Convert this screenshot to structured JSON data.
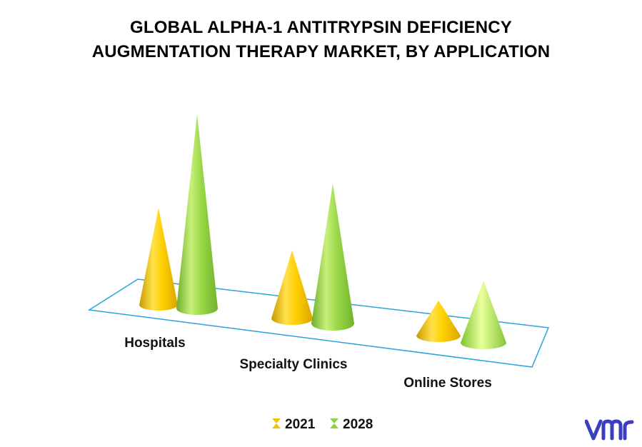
{
  "chart_data": {
    "type": "bar",
    "mark_shape": "3d-cone",
    "title_lines": [
      "GLOBAL ALPHA-1 ANTITRYPSIN DEFICIENCY",
      "AUGMENTATION THERAPY MARKET, BY APPLICATION"
    ],
    "categories": [
      "Hospitals",
      "Specialty Clinics",
      "Online Stores"
    ],
    "series": [
      {
        "name": "2021",
        "values": [
          50,
          35,
          18
        ],
        "color": "#F2C200"
      },
      {
        "name": "2028",
        "values": [
          100,
          72,
          32
        ],
        "color": "#8FD43E"
      }
    ],
    "ylim": [
      0,
      100
    ],
    "grid": false,
    "legend_position": "bottom"
  },
  "brand": {
    "logo_text": "vmr",
    "logo_color": "#3b3fbf"
  }
}
